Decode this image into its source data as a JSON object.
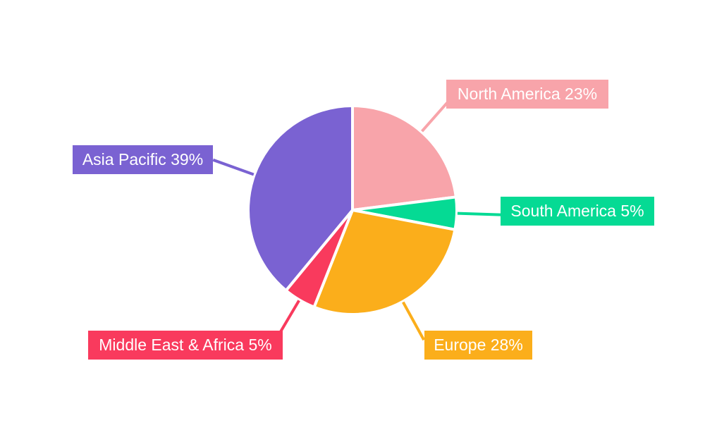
{
  "chart_data": {
    "type": "pie",
    "title": "",
    "unit": "%",
    "start_angle": "top",
    "direction": "clockwise",
    "background_color": "#ffffff",
    "label_text_color": "#ffffff",
    "slice_gap_color": "#ffffff",
    "categories": [
      "North America",
      "South America",
      "Europe",
      "Middle East & Africa",
      "Asia Pacific"
    ],
    "values": [
      23,
      5,
      28,
      5,
      39
    ],
    "slices": [
      {
        "name": "North America",
        "value": 23,
        "label": "North America 23%",
        "color": "#f8a4aa"
      },
      {
        "name": "South America",
        "value": 5,
        "label": "South America 5%",
        "color": "#05da94"
      },
      {
        "name": "Europe",
        "value": 28,
        "label": "Europe 28%",
        "color": "#fbae1b"
      },
      {
        "name": "Middle East & Africa",
        "value": 5,
        "label": "Middle East & Africa 5%",
        "color": "#f93a5d"
      },
      {
        "name": "Asia Pacific",
        "value": 39,
        "label": "Asia Pacific 39%",
        "color": "#7a62d2"
      }
    ]
  }
}
